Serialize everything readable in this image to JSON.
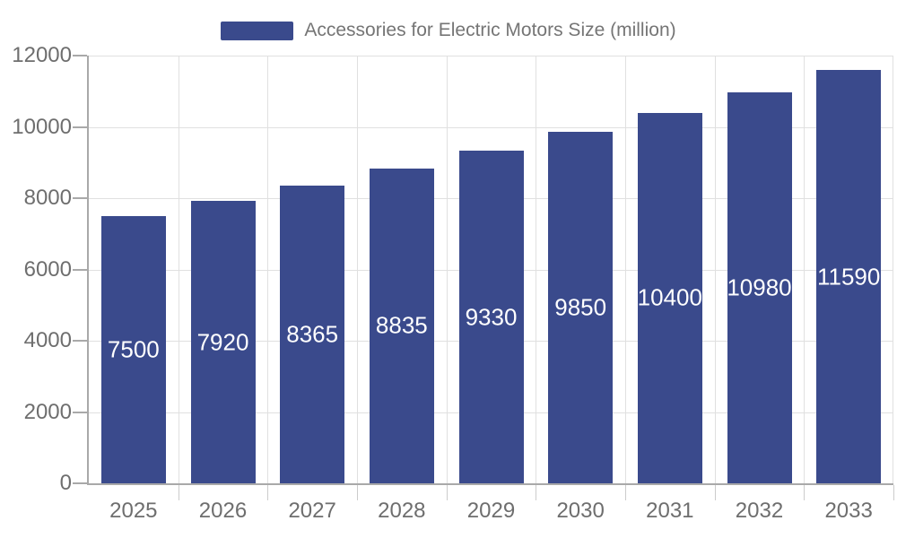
{
  "legend": {
    "label": "Accessories for Electric Motors Size (million)"
  },
  "colors": {
    "bar": "#3A4A8C",
    "value_label": "#FFFFFF",
    "axis_line": "#A9A9A9",
    "grid_line": "#E0E0E0",
    "x_tick": "#CCCCCC",
    "y_tick": "#A9A9A9",
    "axis_text": "#6E6E6E",
    "legend_text": "#757575",
    "background": "#FFFFFF"
  },
  "chart_data": {
    "type": "bar",
    "categories": [
      "2025",
      "2026",
      "2027",
      "2028",
      "2029",
      "2030",
      "2031",
      "2032",
      "2033"
    ],
    "values": [
      7500,
      7920,
      8365,
      8835,
      9330,
      9850,
      10400,
      10980,
      11590
    ],
    "series_name": "Accessories for Electric Motors Size (million)",
    "title": "",
    "xlabel": "",
    "ylabel": "",
    "ylim": [
      0,
      12000
    ],
    "yticks": [
      0,
      2000,
      4000,
      6000,
      8000,
      10000,
      12000
    ],
    "grid": true,
    "legend_position": "top-center",
    "value_label_position": "inside-center"
  }
}
